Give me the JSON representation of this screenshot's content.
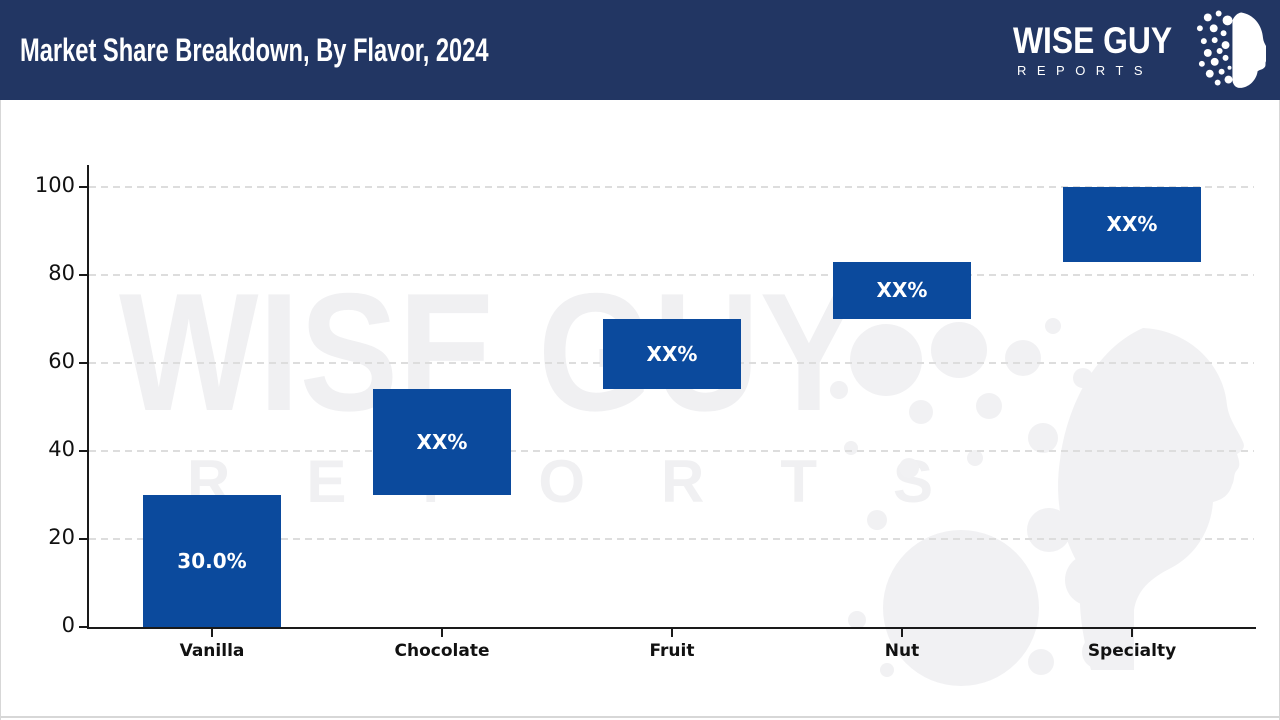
{
  "header": {
    "title": "Market Share Breakdown, By Flavor, 2024",
    "logo": {
      "brand_top": "WISE GUY",
      "brand_bottom": "REPORTS",
      "face_icon": "dotted-face-profile-icon"
    }
  },
  "watermark": {
    "brand_top": "WISE GUY",
    "brand_bottom": "REPORTS",
    "face_icon": "dotted-face-profile-icon"
  },
  "colors": {
    "header_bg": "#223663",
    "title_text": "#ffffff",
    "background": "#ffffff",
    "bar_fill": "#0b4a9d",
    "bar_label": "#ffffff",
    "axis_text": "#111111",
    "axis_line": "#1a1a1a",
    "gridline": "#dddddd",
    "watermark": "#f0f0f2",
    "hairline": "#d7d7d7"
  },
  "chart_data": {
    "type": "bar",
    "subtype": "waterfall",
    "title": "Market Share Breakdown, By Flavor, 2024",
    "categories": [
      "Vanilla",
      "Chocolate",
      "Fruit",
      "Nut",
      "Specialty"
    ],
    "segments": [
      {
        "category": "Vanilla",
        "start": 0,
        "end": 30,
        "value": 30.0,
        "label": "30.0%"
      },
      {
        "category": "Chocolate",
        "start": 30,
        "end": 54,
        "value": 24,
        "label": "XX%"
      },
      {
        "category": "Fruit",
        "start": 54,
        "end": 70,
        "value": 16,
        "label": "XX%"
      },
      {
        "category": "Nut",
        "start": 70,
        "end": 83,
        "value": 13,
        "label": "XX%"
      },
      {
        "category": "Specialty",
        "start": 83,
        "end": 100,
        "value": 17,
        "label": "XX%"
      }
    ],
    "xlabel": "",
    "ylabel": "",
    "yticks": [
      0,
      20,
      40,
      60,
      80,
      100
    ],
    "ylim": [
      0,
      105
    ],
    "grid": "horizontal-dashed",
    "legend": "none",
    "note": "XX% labels are redacted placeholders; bar extents read from axis"
  }
}
